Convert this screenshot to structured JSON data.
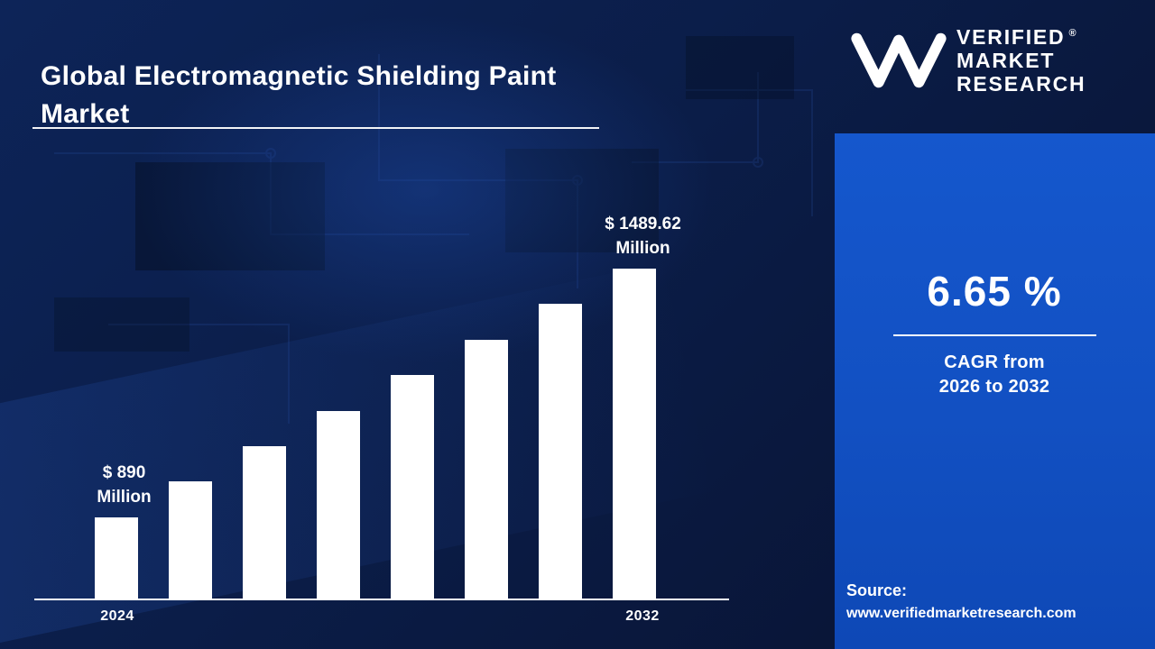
{
  "title": "Global Electromagnetic Shielding Paint Market",
  "brand": {
    "name_line1": "VERIFIED",
    "name_line2": "MARKET",
    "name_line3": "RESEARCH",
    "registered_mark": "®"
  },
  "panel": {
    "cagr_value": "6.65 %",
    "cagr_caption_line1": "CAGR from",
    "cagr_caption_line2": "2026 to 2032",
    "source_label": "Source:",
    "source_url": "www.verifiedmarketresearch.com"
  },
  "colors": {
    "background": "#0b1d48",
    "accent_panel": "#1254c8",
    "bar": "#ffffff",
    "text": "#ffffff"
  },
  "chart_data": {
    "type": "bar",
    "title": "Global Electromagnetic Shielding Paint Market",
    "unit": "USD Million",
    "categories": [
      "2024",
      "",
      "",
      "",
      "",
      "",
      "",
      "2032"
    ],
    "values": [
      890,
      976,
      1061,
      1147,
      1233,
      1318,
      1404,
      1489.62
    ],
    "estimated_intermediate_values": true,
    "ylim": [
      890,
      1489.62
    ],
    "bar_color": "#ffffff",
    "grid": false,
    "baseline_axis": true,
    "first_bar_label": {
      "amount": "$ 890",
      "unit": "Million"
    },
    "last_bar_label": {
      "amount": "$ 1489.62",
      "unit": "Million"
    },
    "visible_x_labels": [
      "2024",
      "2032"
    ]
  }
}
